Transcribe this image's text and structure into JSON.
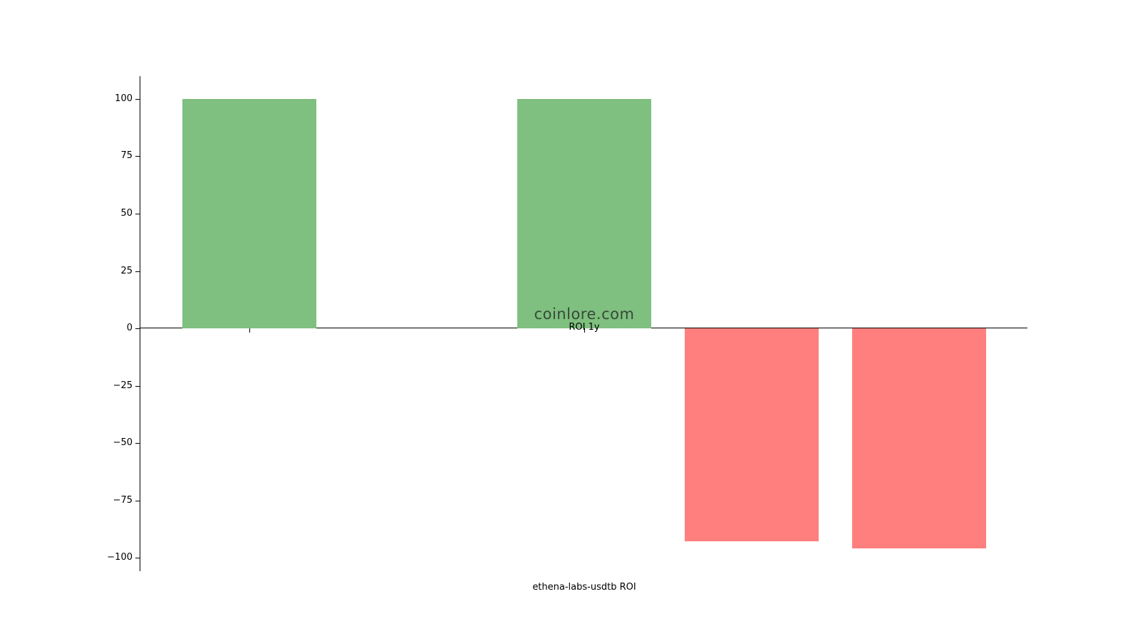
{
  "chart_data": {
    "type": "bar",
    "title": "ethena-labs-usdtb ROI",
    "watermark": "coinlore.com",
    "categories": [
      "",
      "",
      "ROI 1y",
      "",
      ""
    ],
    "values": [
      100,
      0,
      100,
      -93,
      -96
    ],
    "series": [
      {
        "name": "ROI",
        "values": [
          100,
          0,
          100,
          -93,
          -96
        ]
      }
    ],
    "x_tick_label": "ROI 1y",
    "yticks": [
      100,
      75,
      50,
      25,
      0,
      -25,
      -50,
      -75,
      -100
    ],
    "ylim": [
      -106,
      110
    ],
    "xlabel": "",
    "ylabel": "",
    "grid": false,
    "legend_position": "none",
    "positive_color": "#7fbf7f",
    "negative_color": "#ff7f7f",
    "axis_color": "#000000",
    "background_color": "#ffffff"
  }
}
